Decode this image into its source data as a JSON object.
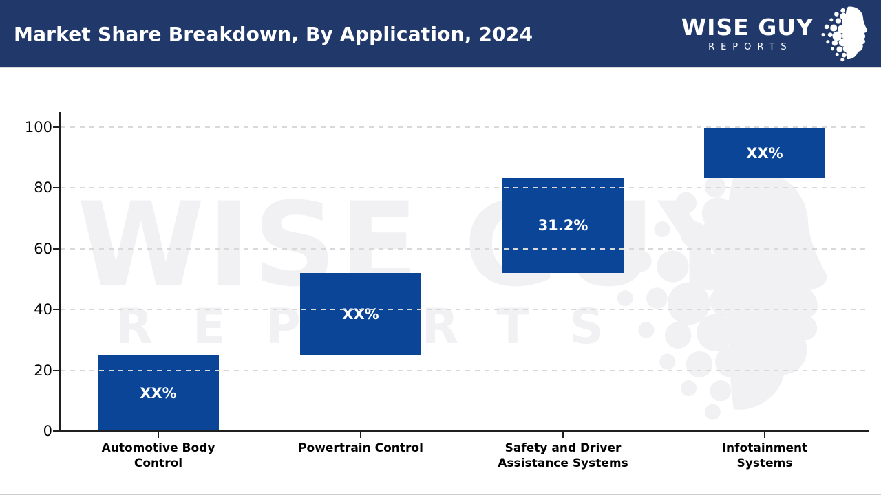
{
  "header": {
    "title": "Market Share Breakdown, By Application, 2024",
    "logo": {
      "line1": "WISE GUY",
      "line2": "REPORTS"
    }
  },
  "watermark": {
    "line1": "WISE GUY",
    "line2": "REPORTS"
  },
  "chart_data": {
    "type": "bar",
    "subtype": "floating-waterfall",
    "title": "Market Share Breakdown, By Application, 2024",
    "categories": [
      "Automotive Body\nControl",
      "Powertrain Control",
      "Safety and Driver\nAssistance Systems",
      "Infotainment\nSystems"
    ],
    "bars": [
      {
        "start": 0,
        "end": 24.9,
        "label": "XX%"
      },
      {
        "start": 24.9,
        "end": 52.1,
        "label": "XX%"
      },
      {
        "start": 52.1,
        "end": 83.3,
        "label": "31.2%"
      },
      {
        "start": 83.3,
        "end": 99.7,
        "label": "XX%"
      }
    ],
    "yticks": [
      0,
      20,
      40,
      60,
      80,
      100
    ],
    "ylim": [
      0,
      105
    ],
    "xlabel": "",
    "ylabel": "",
    "grid": "horizontal-dashed",
    "legend": "none",
    "bar_color": "#0a4597",
    "bar_label_color": "#ffffff",
    "header_bg_color": "#21386b",
    "grid_color": "#d9d9d9",
    "axis_color": "#1f1f1f",
    "watermark_color": "#f1f1f4"
  }
}
